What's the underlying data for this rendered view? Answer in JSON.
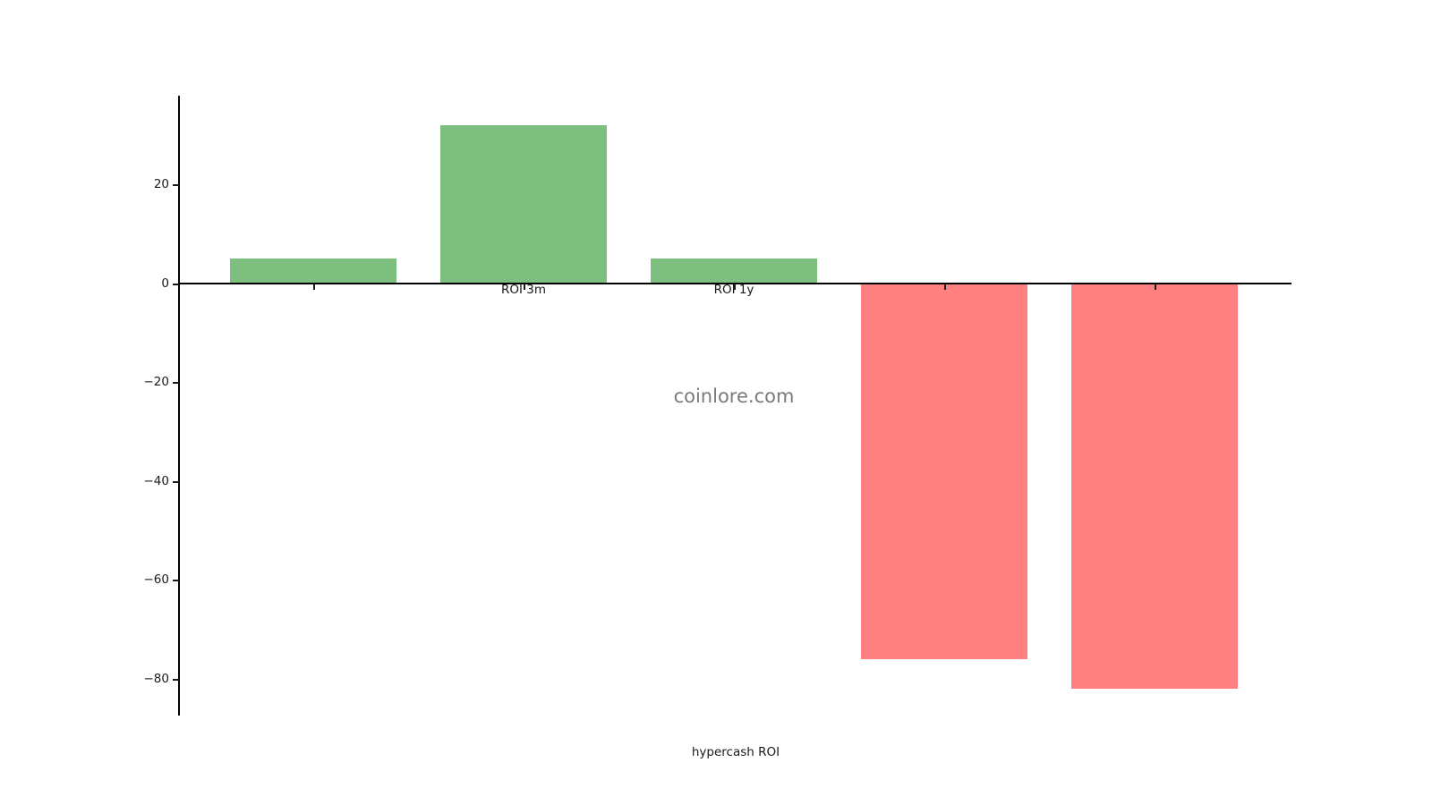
{
  "watermark": "coinlore.com",
  "chart_data": {
    "type": "bar",
    "title": "",
    "xlabel": "hypercash ROI",
    "ylabel": "",
    "categories": [
      "",
      "ROI 3m",
      "ROI 1y",
      "",
      ""
    ],
    "values": [
      5,
      32,
      5,
      -76,
      -82
    ],
    "yticks": [
      20,
      0,
      -20,
      -40,
      -60,
      -80
    ],
    "ylim": [
      -87.5,
      38
    ],
    "grid": false,
    "legend": null,
    "colors": {
      "positive": "#7cbf7e",
      "negative": "#fe8081",
      "axis": "#000000",
      "tick_label": "#1a1a1a",
      "watermark": "#7a7a7a"
    }
  }
}
